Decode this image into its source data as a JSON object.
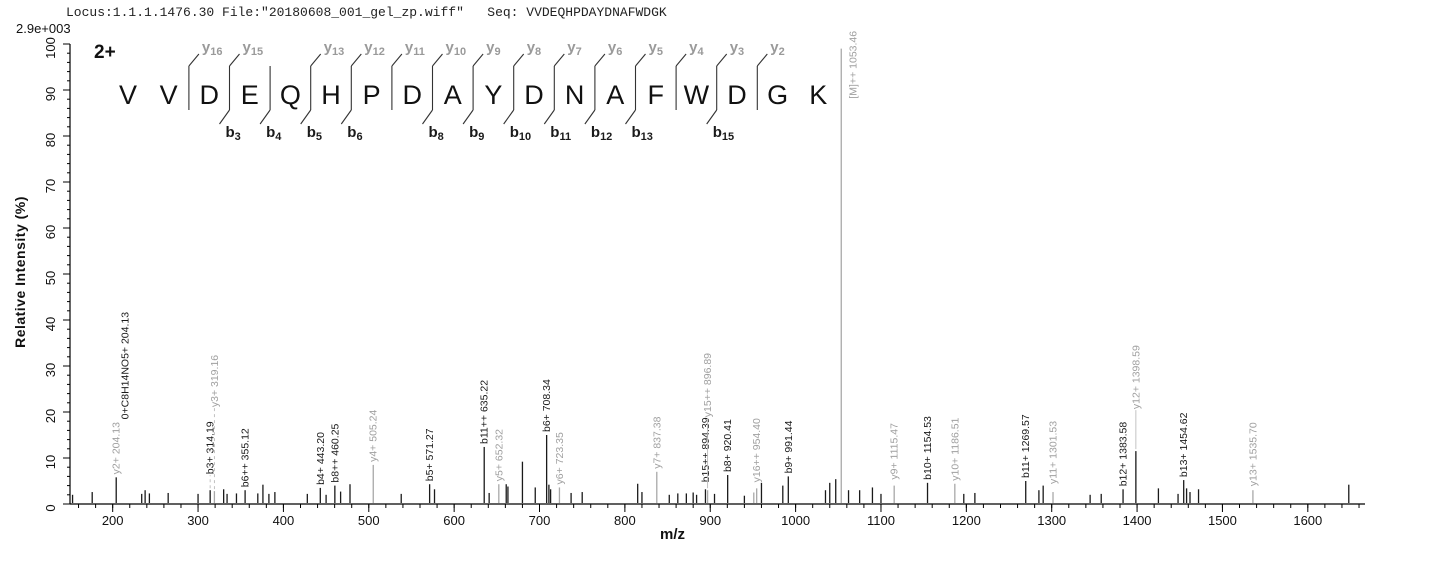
{
  "header": {
    "text": "Locus:1.1.1.1476.30 File:\"20180608_001_gel_zp.wiff\"   Seq: VVDEQHPDAYDNAFWDGK"
  },
  "chart_data": {
    "type": "bar",
    "subtype": "ms2-fragmentation-stick-spectrum",
    "title": "",
    "xlabel": "m/z",
    "ylabel": "Relative  Intensity (%)",
    "max_intensity_label": "2.9e+003",
    "charge_label": "2+",
    "xlim": [
      150,
      1667
    ],
    "ylim": [
      0,
      100
    ],
    "x_major_ticks": {
      "start": 200,
      "end": 1600,
      "step": 100
    },
    "x_minor_tick_step": 20,
    "y_major_tick_step": 10,
    "y_minor_tick_step": 2,
    "grid": false,
    "legend": false,
    "colors": {
      "peak_black": "#1a1a1a",
      "peak_gray": "#a8a8a8",
      "label_black": "#1a1a1a",
      "label_gray": "#a0a0a0",
      "axis": "#000000",
      "leader": "#bbbbbb",
      "seq_letter": "#111111",
      "seq_mark": "#333333",
      "ion_y": "#9a9a9a",
      "ion_b": "#1a1a1a"
    },
    "sequence": {
      "residues": [
        "V",
        "V",
        "D",
        "E",
        "Q",
        "H",
        "P",
        "D",
        "A",
        "Y",
        "D",
        "N",
        "A",
        "F",
        "W",
        "D",
        "G",
        "K"
      ],
      "cleavages": [
        {
          "after": 2,
          "y": "y16"
        },
        {
          "after": 3,
          "y": "y15",
          "b": "b3"
        },
        {
          "after": 4,
          "b": "b4"
        },
        {
          "after": 5,
          "y": "y13",
          "b": "b5"
        },
        {
          "after": 6,
          "y": "y12",
          "b": "b6"
        },
        {
          "after": 7,
          "y": "y11"
        },
        {
          "after": 8,
          "y": "y10",
          "b": "b8"
        },
        {
          "after": 9,
          "y": "y9",
          "b": "b9"
        },
        {
          "after": 10,
          "y": "y8",
          "b": "b10"
        },
        {
          "after": 11,
          "y": "y7",
          "b": "b11"
        },
        {
          "after": 12,
          "y": "y6",
          "b": "b12"
        },
        {
          "after": 13,
          "y": "y5",
          "b": "b13"
        },
        {
          "after": 14,
          "y": "y4"
        },
        {
          "after": 15,
          "y": "y3",
          "b": "b15"
        },
        {
          "after": 16,
          "y": "y2"
        }
      ]
    },
    "peaks": [
      {
        "mz": 153,
        "i": 2.0,
        "c": "b"
      },
      {
        "mz": 176,
        "i": 2.6,
        "c": "b"
      },
      {
        "mz": 204.13,
        "i": 5.8,
        "c": "b",
        "L": [
          {
            "t": "y2+ 204.13",
            "c": "g"
          },
          {
            "t": "0+C8H14NO5+ 204.13",
            "c": "b",
            "dx": 9,
            "up": 58
          }
        ]
      },
      {
        "mz": 234,
        "i": 2.2,
        "c": "b"
      },
      {
        "mz": 238,
        "i": 3.0,
        "c": "b"
      },
      {
        "mz": 243,
        "i": 2.3,
        "c": "b"
      },
      {
        "mz": 265,
        "i": 2.4,
        "c": "b"
      },
      {
        "mz": 300,
        "i": 2.2,
        "c": "b"
      },
      {
        "mz": 314.19,
        "i": 3.0,
        "c": "b",
        "L": [
          {
            "t": "b3+ 314.19",
            "c": "b",
            "up": 16,
            "leader": "dashed"
          }
        ]
      },
      {
        "mz": 319.16,
        "i": 2.8,
        "c": "g",
        "L": [
          {
            "t": "y3+ 319.16",
            "c": "g",
            "up": 84,
            "leader": "dashed"
          }
        ]
      },
      {
        "mz": 330,
        "i": 3.2,
        "c": "b"
      },
      {
        "mz": 334,
        "i": 2.2,
        "c": "b"
      },
      {
        "mz": 345,
        "i": 2.3,
        "c": "b"
      },
      {
        "mz": 355.12,
        "i": 3.0,
        "c": "b",
        "L": [
          {
            "t": "b6++ 355.12",
            "c": "b"
          }
        ]
      },
      {
        "mz": 370,
        "i": 2.3,
        "c": "b"
      },
      {
        "mz": 376,
        "i": 4.2,
        "c": "b"
      },
      {
        "mz": 383,
        "i": 2.2,
        "c": "b"
      },
      {
        "mz": 390,
        "i": 2.6,
        "c": "b"
      },
      {
        "mz": 428,
        "i": 2.2,
        "c": "b"
      },
      {
        "mz": 443.2,
        "i": 3.5,
        "c": "b",
        "L": [
          {
            "t": "b4+ 443.20",
            "c": "b"
          }
        ]
      },
      {
        "mz": 450,
        "i": 2.0,
        "c": "b"
      },
      {
        "mz": 460.25,
        "i": 4.0,
        "c": "b",
        "L": [
          {
            "t": "b8++ 460.25",
            "c": "b"
          }
        ]
      },
      {
        "mz": 467,
        "i": 2.7,
        "c": "b"
      },
      {
        "mz": 478,
        "i": 4.3,
        "c": "b"
      },
      {
        "mz": 505.24,
        "i": 8.5,
        "c": "g",
        "L": [
          {
            "t": "y4+ 505.24",
            "c": "g"
          }
        ]
      },
      {
        "mz": 538,
        "i": 2.2,
        "c": "b"
      },
      {
        "mz": 571.27,
        "i": 4.3,
        "c": "b",
        "L": [
          {
            "t": "b5+ 571.27",
            "c": "b"
          }
        ]
      },
      {
        "mz": 577,
        "i": 3.2,
        "c": "b"
      },
      {
        "mz": 635.22,
        "i": 12.4,
        "c": "b",
        "L": [
          {
            "t": "b11++ 635.22",
            "c": "b"
          }
        ]
      },
      {
        "mz": 641,
        "i": 2.4,
        "c": "b"
      },
      {
        "mz": 652.32,
        "i": 4.3,
        "c": "g",
        "L": [
          {
            "t": "y5+ 652.32",
            "c": "g"
          }
        ]
      },
      {
        "mz": 661,
        "i": 4.3,
        "c": "b"
      },
      {
        "mz": 663,
        "i": 3.8,
        "c": "b"
      },
      {
        "mz": 680,
        "i": 9.2,
        "c": "b"
      },
      {
        "mz": 695,
        "i": 3.6,
        "c": "b"
      },
      {
        "mz": 708.34,
        "i": 15.0,
        "c": "b",
        "L": [
          {
            "t": "b6+ 708.34",
            "c": "b"
          }
        ]
      },
      {
        "mz": 711,
        "i": 4.2,
        "c": "b"
      },
      {
        "mz": 713,
        "i": 3.2,
        "c": "b"
      },
      {
        "mz": 723.35,
        "i": 3.6,
        "c": "g",
        "L": [
          {
            "t": "y6+ 723.35",
            "c": "g"
          }
        ]
      },
      {
        "mz": 737,
        "i": 2.4,
        "c": "b"
      },
      {
        "mz": 750,
        "i": 2.6,
        "c": "b"
      },
      {
        "mz": 815,
        "i": 4.4,
        "c": "b"
      },
      {
        "mz": 820,
        "i": 2.6,
        "c": "b"
      },
      {
        "mz": 837.38,
        "i": 7.0,
        "c": "g",
        "L": [
          {
            "t": "y7+ 837.38",
            "c": "g"
          }
        ]
      },
      {
        "mz": 852,
        "i": 2.0,
        "c": "b"
      },
      {
        "mz": 862,
        "i": 2.3,
        "c": "b"
      },
      {
        "mz": 872,
        "i": 2.3,
        "c": "b"
      },
      {
        "mz": 880,
        "i": 2.5,
        "c": "b"
      },
      {
        "mz": 884,
        "i": 2.0,
        "c": "b"
      },
      {
        "mz": 894.39,
        "i": 3.2,
        "c": "b",
        "L": [
          {
            "t": "b15++ 894.39",
            "c": "b",
            "up": 7
          }
        ]
      },
      {
        "mz": 896.89,
        "i": 3.0,
        "c": "g",
        "L": [
          {
            "t": "y15++ 896.89",
            "c": "g",
            "up": 73,
            "leader": "solid"
          }
        ]
      },
      {
        "mz": 905,
        "i": 2.2,
        "c": "b"
      },
      {
        "mz": 920.41,
        "i": 6.3,
        "c": "b",
        "L": [
          {
            "t": "b8+ 920.41",
            "c": "b"
          }
        ]
      },
      {
        "mz": 940,
        "i": 1.8,
        "c": "b"
      },
      {
        "mz": 951,
        "i": 2.5,
        "c": "g"
      },
      {
        "mz": 954.4,
        "i": 3.4,
        "c": "g",
        "L": [
          {
            "t": "y16++ 954.40",
            "c": "g",
            "up": 6
          }
        ]
      },
      {
        "mz": 960,
        "i": 4.6,
        "c": "b"
      },
      {
        "mz": 985,
        "i": 4.0,
        "c": "b"
      },
      {
        "mz": 991.44,
        "i": 6.0,
        "c": "b",
        "L": [
          {
            "t": "b9+ 991.44",
            "c": "b"
          }
        ]
      },
      {
        "mz": 1035,
        "i": 3.0,
        "c": "b"
      },
      {
        "mz": 1040,
        "i": 4.6,
        "c": "b"
      },
      {
        "mz": 1047,
        "i": 5.4,
        "c": "b"
      },
      {
        "mz": 1053.46,
        "i": 99.0,
        "c": "g",
        "L": [
          {
            "t": "[M]++ 1053.46",
            "c": "g",
            "dx": 12,
            "up": -50
          }
        ]
      },
      {
        "mz": 1062,
        "i": 3.0,
        "c": "b"
      },
      {
        "mz": 1075,
        "i": 3.0,
        "c": "b"
      },
      {
        "mz": 1090,
        "i": 3.6,
        "c": "b"
      },
      {
        "mz": 1100,
        "i": 2.2,
        "c": "b"
      },
      {
        "mz": 1115.47,
        "i": 4.0,
        "c": "g",
        "L": [
          {
            "t": "y9+ 1115.47",
            "c": "g",
            "up": 6
          }
        ]
      },
      {
        "mz": 1154.53,
        "i": 4.6,
        "c": "b",
        "L": [
          {
            "t": "b10+ 1154.53",
            "c": "b"
          }
        ]
      },
      {
        "mz": 1186.51,
        "i": 4.4,
        "c": "g",
        "L": [
          {
            "t": "y10+ 1186.51",
            "c": "g"
          }
        ]
      },
      {
        "mz": 1197,
        "i": 2.2,
        "c": "b"
      },
      {
        "mz": 1210,
        "i": 2.4,
        "c": "b"
      },
      {
        "mz": 1269.57,
        "i": 5.0,
        "c": "b",
        "L": [
          {
            "t": "b11+ 1269.57",
            "c": "b"
          }
        ]
      },
      {
        "mz": 1285,
        "i": 3.0,
        "c": "b"
      },
      {
        "mz": 1290,
        "i": 4.0,
        "c": "b"
      },
      {
        "mz": 1301.53,
        "i": 2.6,
        "c": "g",
        "L": [
          {
            "t": "y11+ 1301.53",
            "c": "g",
            "up": 8
          }
        ]
      },
      {
        "mz": 1345,
        "i": 2.0,
        "c": "b"
      },
      {
        "mz": 1358,
        "i": 2.2,
        "c": "b"
      },
      {
        "mz": 1383.58,
        "i": 3.2,
        "c": "b",
        "L": [
          {
            "t": "b12+ 1383.58",
            "c": "b"
          }
        ]
      },
      {
        "mz": 1398.59,
        "i": 11.5,
        "c": "b",
        "L": [
          {
            "t": "y12+ 1398.59",
            "c": "g",
            "up": 42,
            "leader": "solid"
          }
        ]
      },
      {
        "mz": 1425,
        "i": 3.4,
        "c": "b"
      },
      {
        "mz": 1448,
        "i": 2.2,
        "c": "b"
      },
      {
        "mz": 1454.62,
        "i": 5.2,
        "c": "b",
        "L": [
          {
            "t": "b13+ 1454.62",
            "c": "b"
          }
        ]
      },
      {
        "mz": 1458,
        "i": 3.4,
        "c": "b"
      },
      {
        "mz": 1462,
        "i": 2.6,
        "c": "b"
      },
      {
        "mz": 1472,
        "i": 3.2,
        "c": "b"
      },
      {
        "mz": 1535.7,
        "i": 3.0,
        "c": "g",
        "L": [
          {
            "t": "y13+ 1535.70",
            "c": "g",
            "up": 4
          }
        ]
      },
      {
        "mz": 1648,
        "i": 4.2,
        "c": "b"
      }
    ]
  }
}
